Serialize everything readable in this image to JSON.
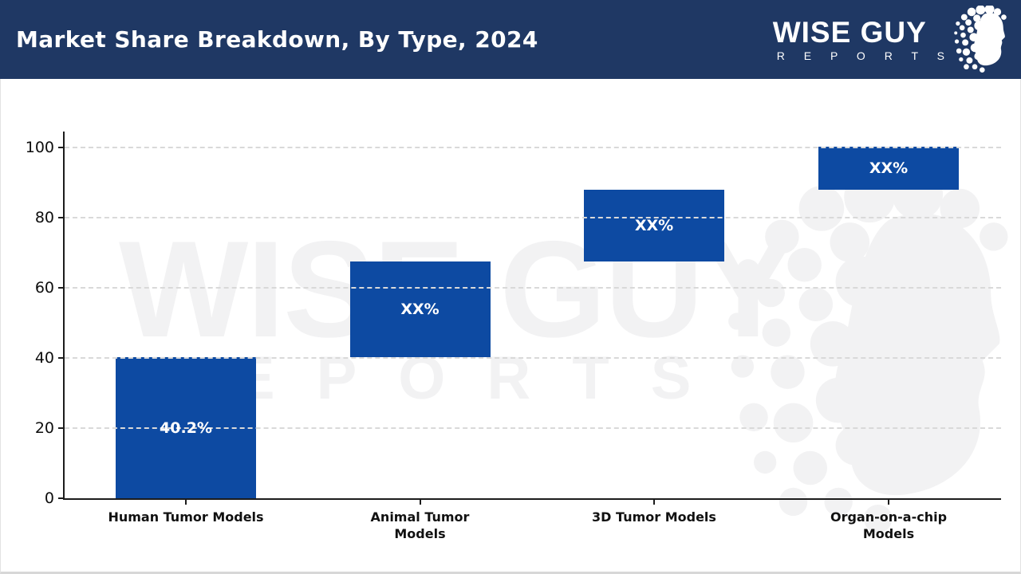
{
  "header": {
    "title": "Market Share Breakdown, By Type, 2024",
    "logo": {
      "line1": "WISE GUY",
      "line2": "R E P O R T S"
    }
  },
  "watermark": {
    "line1": "WISE GUY",
    "line2": "REPORTS",
    "face_icon": "dotted-face-profile"
  },
  "colors": {
    "header_bg": "#1F3864",
    "bar": "#0D4AA2",
    "grid": "#D9D9D9",
    "axis": "#1C1C1C",
    "watermark": "#F2F2F3",
    "bar_label_text": "#FFFFFF",
    "tick_text": "#0D0D0D"
  },
  "chart_data": {
    "type": "bar",
    "subtype": "floating-waterfall",
    "title": "Market Share Breakdown, By Type, 2024",
    "categories": [
      "Human Tumor Models",
      "Animal Tumor\nModels",
      "3D Tumor Models",
      "Organ-on-a-chip\nModels"
    ],
    "segments": [
      {
        "category": "Human Tumor Models",
        "start": 0,
        "end": 40.2,
        "label": "40.2%"
      },
      {
        "category": "Animal Tumor Models",
        "start": 40.2,
        "end": 67.5,
        "label": "XX%"
      },
      {
        "category": "3D Tumor Models",
        "start": 67.5,
        "end": 88,
        "label": "XX%"
      },
      {
        "category": "Organ-on-a-chip Models",
        "start": 88,
        "end": 100.2,
        "label": "XX%"
      }
    ],
    "xlabel": "",
    "ylabel": "",
    "ylim": [
      0,
      105
    ],
    "yticks": [
      0,
      20,
      40,
      60,
      80,
      100
    ],
    "grid": "horizontal-dashed",
    "legend": "none",
    "bar_color": "#0D4AA2"
  }
}
